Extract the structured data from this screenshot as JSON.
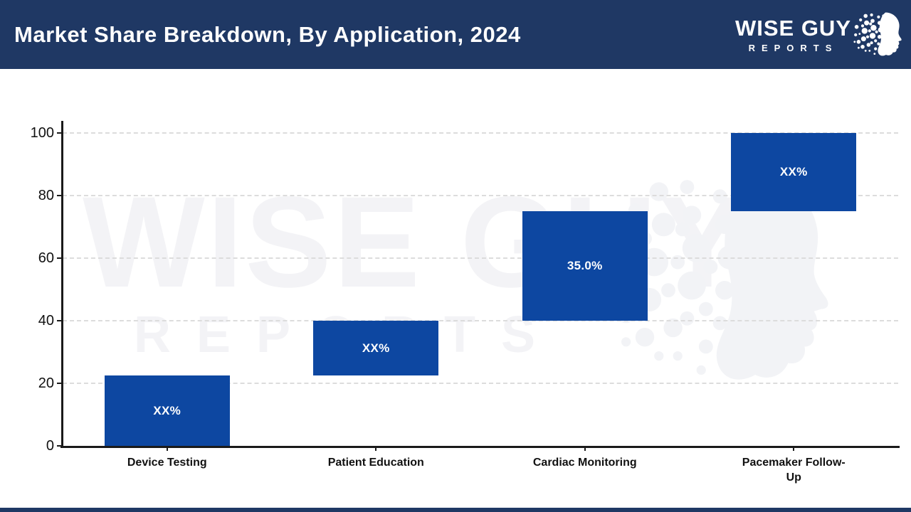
{
  "header": {
    "title": "Market Share Breakdown, By Application, 2024",
    "bg_color": "#1f3864",
    "logo": {
      "line1": "WISE GUY",
      "line2": "REPORTS"
    }
  },
  "watermark": {
    "line1": "WISE GUY",
    "line2": "REPORTS"
  },
  "chart_data": {
    "type": "bar",
    "subtype": "waterfall",
    "title": "Market Share Breakdown, By Application, 2024",
    "categories": [
      "Device Testing",
      "Patient Education",
      "Cardiac Monitoring",
      "Pacemaker Follow-Up"
    ],
    "starts": [
      0,
      22.5,
      40,
      75
    ],
    "values": [
      22.5,
      17.5,
      35.0,
      25.0
    ],
    "bar_labels": [
      "XX%",
      "XX%",
      "35.0%",
      "XX%"
    ],
    "xlabel": "",
    "ylabel": "",
    "ylim": [
      0,
      100
    ],
    "yticks": [
      0,
      20,
      40,
      60,
      80,
      100
    ],
    "grid": "horizontal-dashed",
    "legend": "none",
    "bar_color": "#0d47a1",
    "bar_label_color": "#ffffff",
    "axis_color": "#1a1a1a"
  }
}
